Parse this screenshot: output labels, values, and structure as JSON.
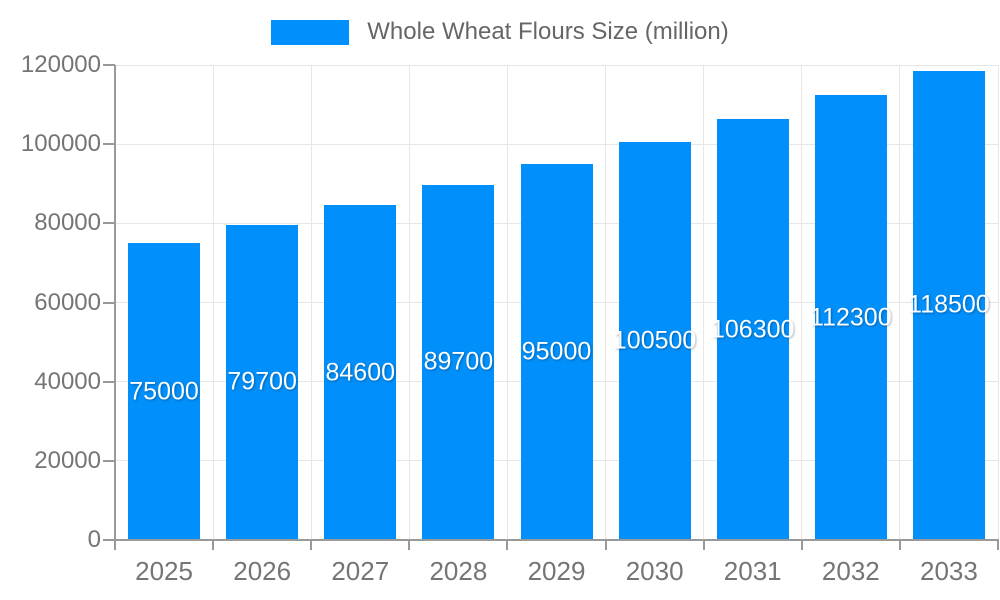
{
  "legend": {
    "items": [
      {
        "label": "Whole Wheat Flours Size (million)",
        "color": "#008FFB"
      }
    ]
  },
  "chart_data": {
    "type": "bar",
    "title": "",
    "xlabel": "",
    "ylabel": "",
    "categories": [
      "2025",
      "2026",
      "2027",
      "2028",
      "2029",
      "2030",
      "2031",
      "2032",
      "2033"
    ],
    "series": [
      {
        "name": "Whole Wheat Flours Size (million)",
        "color": "#008FFB",
        "values": [
          75000,
          79700,
          84600,
          89700,
          95000,
          100500,
          106300,
          112300,
          118500
        ]
      }
    ],
    "data_labels": [
      "75000",
      "79700",
      "84600",
      "89700",
      "95000",
      "100500",
      "106300",
      "112300",
      "118500"
    ],
    "ylim": [
      0,
      120000
    ],
    "yticks": [
      0,
      20000,
      40000,
      60000,
      80000,
      100000,
      120000
    ],
    "ytick_labels": [
      "0",
      "20000",
      "40000",
      "60000",
      "80000",
      "100000",
      "120000"
    ],
    "grid": true,
    "legend_position": "top-center"
  },
  "colors": {
    "bar": "#008FFB",
    "grid": "#e7e7e7",
    "axis": "#999999",
    "tick_label": "#757575",
    "legend_text": "#666666",
    "data_label": "#ffffff",
    "background": "#ffffff"
  }
}
